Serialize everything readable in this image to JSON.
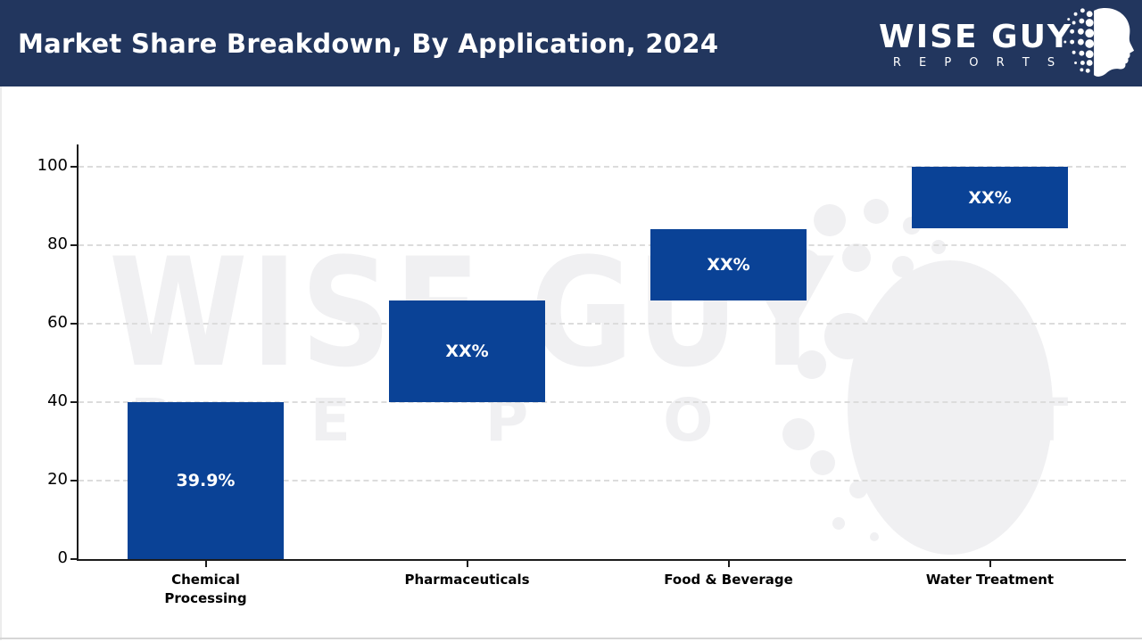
{
  "header": {
    "title": "Market Share Breakdown, By Application, 2024",
    "logo": {
      "name": "WISE GUY",
      "subname": "R E P O R T S"
    }
  },
  "watermark": {
    "line1": "WISE GUY",
    "line2": "R E P O R T S"
  },
  "chart_data": {
    "type": "bar",
    "subtype": "waterfall",
    "title": "Market Share Breakdown, By Application, 2024",
    "unit": "percent market share",
    "categories": [
      "Chemical Processing",
      "Pharmaceuticals",
      "Food & Beverage",
      "Water Treatment"
    ],
    "segments": [
      {
        "category": "Chemical Processing",
        "start": 0,
        "end": 39.9,
        "label": "39.9%"
      },
      {
        "category": "Pharmaceuticals",
        "start": 39.9,
        "end": 65.9,
        "label": "XX%"
      },
      {
        "category": "Food & Beverage",
        "start": 65.9,
        "end": 84.1,
        "label": "XX%"
      },
      {
        "category": "Water Treatment",
        "start": 84.3,
        "end": 100,
        "label": "XX%"
      }
    ],
    "xlabel": "",
    "ylabel": "",
    "ylim": [
      0,
      100
    ],
    "yticks": [
      0,
      20,
      40,
      60,
      80,
      100
    ],
    "grid": "horizontal dashed",
    "legend": "none",
    "bar_color": "#0a4296",
    "bar_label_color": "#ffffff"
  },
  "colors": {
    "header_bg": "#22365e",
    "header_text": "#ffffff",
    "watermark": "#f0f0f2",
    "gridline": "#dcdcdc",
    "axis": "#1c1c1c",
    "tick_text": "#000000"
  }
}
